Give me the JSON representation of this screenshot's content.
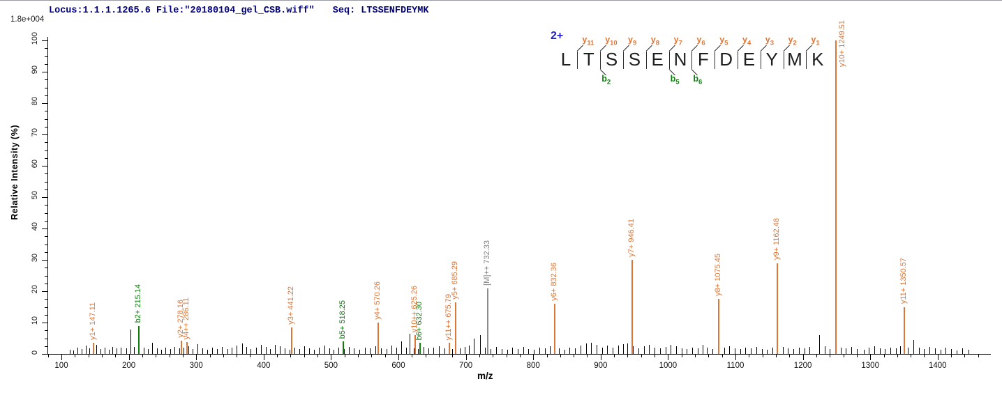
{
  "header": {
    "locus_file": "Locus:1.1.1.1265.6 File:\"20180104_gel_CSB.wiff\"",
    "seq_label": "Seq: LTSSENFDEYMK"
  },
  "chart_data": {
    "type": "bar",
    "subtype": "ms2_peptide_fragmentation_spectrum",
    "xlabel": "m/z",
    "ylabel": "Relative  Intensity (%)",
    "base_peak_intensity": "1.8e+004",
    "xlim": [
      79,
      1462
    ],
    "ylim": [
      0,
      100
    ],
    "x_major_ticks": [
      100,
      200,
      300,
      400,
      500,
      600,
      700,
      800,
      900,
      1000,
      1100,
      1200,
      1300,
      1400
    ],
    "x_minor_step": 20,
    "y_major_ticks": [
      0,
      10,
      20,
      30,
      40,
      50,
      60,
      70,
      80,
      90,
      100
    ],
    "y_minor_step": 2.5,
    "grid": false,
    "precursor": {
      "charge": "2+",
      "sequence": "LTSSENFDEYMK"
    },
    "colors": {
      "y_ion": "#de7637",
      "b_ion": "#0e7d0e",
      "precursor_peak": "#8c8c8c",
      "noise": "#000000"
    },
    "labeled_peaks": [
      {
        "label": "y1+ 147.11",
        "mz": 147.11,
        "intensity": 3.5,
        "series": "y_ion"
      },
      {
        "label": "b2+ 215.14",
        "mz": 215.14,
        "intensity": 9,
        "series": "b_ion"
      },
      {
        "label": "y2+ 278.16",
        "mz": 278.16,
        "intensity": 4.2,
        "series": "y_ion"
      },
      {
        "label": "y4++ 286.11",
        "mz": 286.11,
        "intensity": 3.8,
        "series": "y_ion"
      },
      {
        "label": "y3+ 441.22",
        "mz": 441.22,
        "intensity": 8.5,
        "series": "y_ion"
      },
      {
        "label": "b5+ 518.25",
        "mz": 518.25,
        "intensity": 4,
        "series": "b_ion"
      },
      {
        "label": "y4+ 570.26",
        "mz": 570.26,
        "intensity": 10,
        "series": "y_ion"
      },
      {
        "label": "y10++ 625.26",
        "mz": 625.26,
        "intensity": 6,
        "series": "y_ion"
      },
      {
        "label": "b6+ 632.30",
        "mz": 632.3,
        "intensity": 3.5,
        "series": "b_ion"
      },
      {
        "label": "y11++ 675.79",
        "mz": 675.79,
        "intensity": 3.5,
        "series": "y_ion"
      },
      {
        "label": "y5+ 685.29",
        "mz": 685.29,
        "intensity": 16.5,
        "series": "y_ion"
      },
      {
        "label": "[M]++ 732.33",
        "mz": 732.33,
        "intensity": 21,
        "series": "precursor"
      },
      {
        "label": "y6+ 832.36",
        "mz": 832.36,
        "intensity": 16,
        "series": "y_ion"
      },
      {
        "label": "y7+ 946.41",
        "mz": 946.41,
        "intensity": 30,
        "series": "y_ion"
      },
      {
        "label": "y8+ 1075.45",
        "mz": 1075.45,
        "intensity": 17.5,
        "series": "y_ion"
      },
      {
        "label": "y9+ 1162.48",
        "mz": 1162.48,
        "intensity": 29,
        "series": "y_ion"
      },
      {
        "label": "y10+ 1249.51",
        "mz": 1249.51,
        "intensity": 100,
        "series": "y_ion"
      },
      {
        "label": "y11+ 1350.57",
        "mz": 1350.57,
        "intensity": 15,
        "series": "y_ion"
      }
    ],
    "noise_peaks": [
      [
        112,
        1.4
      ],
      [
        118,
        1.1
      ],
      [
        124,
        2.0
      ],
      [
        130,
        1.5
      ],
      [
        136,
        2.6
      ],
      [
        141,
        1.8
      ],
      [
        152,
        3.0
      ],
      [
        158,
        1.6
      ],
      [
        164,
        2.1
      ],
      [
        170,
        1.4
      ],
      [
        176,
        2.3
      ],
      [
        182,
        1.7
      ],
      [
        188,
        2.0
      ],
      [
        196,
        1.8
      ],
      [
        203,
        7.8
      ],
      [
        208,
        2.2
      ],
      [
        214,
        1.3
      ],
      [
        222,
        2.0
      ],
      [
        228,
        1.5
      ],
      [
        235,
        3.6
      ],
      [
        242,
        1.8
      ],
      [
        248,
        1.4
      ],
      [
        254,
        2.1
      ],
      [
        261,
        1.6
      ],
      [
        268,
        2.3
      ],
      [
        275,
        1.7
      ],
      [
        281,
        1.9
      ],
      [
        288,
        2.5
      ],
      [
        295,
        1.6
      ],
      [
        302,
        3.1
      ],
      [
        309,
        1.8
      ],
      [
        316,
        1.4
      ],
      [
        324,
        2.0
      ],
      [
        331,
        1.6
      ],
      [
        338,
        2.3
      ],
      [
        346,
        1.5
      ],
      [
        353,
        2.0
      ],
      [
        360,
        2.7
      ],
      [
        368,
        3.3
      ],
      [
        374,
        2.2
      ],
      [
        381,
        1.6
      ],
      [
        389,
        2.0
      ],
      [
        396,
        2.9
      ],
      [
        403,
        2.2
      ],
      [
        410,
        1.6
      ],
      [
        417,
        3.0
      ],
      [
        424,
        2.4
      ],
      [
        431,
        1.8
      ],
      [
        438,
        1.4
      ],
      [
        446,
        2.0
      ],
      [
        453,
        1.6
      ],
      [
        460,
        2.5
      ],
      [
        468,
        1.8
      ],
      [
        475,
        1.4
      ],
      [
        482,
        2.0
      ],
      [
        490,
        2.7
      ],
      [
        497,
        1.8
      ],
      [
        504,
        1.4
      ],
      [
        511,
        2.0
      ],
      [
        519,
        1.6
      ],
      [
        526,
        2.2
      ],
      [
        534,
        1.8
      ],
      [
        542,
        1.4
      ],
      [
        550,
        2.0
      ],
      [
        558,
        1.7
      ],
      [
        566,
        2.4
      ],
      [
        574,
        1.8
      ],
      [
        582,
        1.5
      ],
      [
        590,
        2.6
      ],
      [
        597,
        1.9
      ],
      [
        604,
        4.0
      ],
      [
        611,
        2.0
      ],
      [
        617,
        6.4
      ],
      [
        623,
        1.8
      ],
      [
        629,
        1.5
      ],
      [
        637,
        2.2
      ],
      [
        645,
        1.7
      ],
      [
        652,
        2.0
      ],
      [
        660,
        2.4
      ],
      [
        668,
        1.8
      ],
      [
        680,
        1.5
      ],
      [
        691,
        1.7
      ],
      [
        698,
        2.3
      ],
      [
        705,
        2.7
      ],
      [
        712,
        5.0
      ],
      [
        721,
        6.0
      ],
      [
        728,
        2.0
      ],
      [
        737,
        1.6
      ],
      [
        745,
        2.2
      ],
      [
        753,
        1.6
      ],
      [
        761,
        1.4
      ],
      [
        769,
        2.0
      ],
      [
        777,
        1.6
      ],
      [
        785,
        2.2
      ],
      [
        793,
        1.6
      ],
      [
        801,
        1.4
      ],
      [
        809,
        2.0
      ],
      [
        817,
        1.7
      ],
      [
        825,
        2.4
      ],
      [
        838,
        1.8
      ],
      [
        846,
        1.4
      ],
      [
        854,
        2.0
      ],
      [
        862,
        1.7
      ],
      [
        870,
        2.6
      ],
      [
        878,
        3.4
      ],
      [
        886,
        3.6
      ],
      [
        894,
        2.8
      ],
      [
        902,
        2.0
      ],
      [
        910,
        2.6
      ],
      [
        918,
        2.1
      ],
      [
        926,
        2.7
      ],
      [
        933,
        3.1
      ],
      [
        940,
        3.4
      ],
      [
        948,
        2.4
      ],
      [
        956,
        1.8
      ],
      [
        964,
        2.4
      ],
      [
        972,
        2.8
      ],
      [
        980,
        2.0
      ],
      [
        988,
        1.7
      ],
      [
        996,
        2.3
      ],
      [
        1004,
        3.0
      ],
      [
        1012,
        2.4
      ],
      [
        1020,
        1.8
      ],
      [
        1028,
        1.6
      ],
      [
        1036,
        2.0
      ],
      [
        1044,
        1.7
      ],
      [
        1051,
        3.0
      ],
      [
        1058,
        2.1
      ],
      [
        1066,
        1.6
      ],
      [
        1083,
        2.0
      ],
      [
        1091,
        2.4
      ],
      [
        1099,
        1.8
      ],
      [
        1107,
        1.5
      ],
      [
        1115,
        2.0
      ],
      [
        1123,
        1.7
      ],
      [
        1131,
        2.2
      ],
      [
        1139,
        1.6
      ],
      [
        1147,
        1.4
      ],
      [
        1155,
        2.0
      ],
      [
        1170,
        2.3
      ],
      [
        1178,
        1.7
      ],
      [
        1186,
        1.5
      ],
      [
        1194,
        2.0
      ],
      [
        1202,
        1.7
      ],
      [
        1210,
        2.2
      ],
      [
        1224,
        6.0
      ],
      [
        1232,
        2.4
      ],
      [
        1240,
        1.6
      ],
      [
        1256,
        2.0
      ],
      [
        1264,
        1.7
      ],
      [
        1272,
        2.2
      ],
      [
        1280,
        1.6
      ],
      [
        1290,
        1.4
      ],
      [
        1298,
        2.0
      ],
      [
        1306,
        2.4
      ],
      [
        1314,
        1.8
      ],
      [
        1322,
        1.5
      ],
      [
        1330,
        2.0
      ],
      [
        1338,
        1.7
      ],
      [
        1344,
        2.4
      ],
      [
        1349,
        4.0
      ],
      [
        1356,
        2.1
      ],
      [
        1364,
        4.4
      ],
      [
        1372,
        2.0
      ],
      [
        1380,
        1.6
      ],
      [
        1388,
        2.2
      ],
      [
        1396,
        1.7
      ],
      [
        1404,
        1.4
      ],
      [
        1412,
        2.0
      ],
      [
        1420,
        1.6
      ],
      [
        1428,
        1.2
      ],
      [
        1436,
        1.8
      ],
      [
        1446,
        1.3
      ]
    ]
  },
  "annotation": {
    "charge": "2+",
    "residues": [
      "L",
      "T",
      "S",
      "S",
      "E",
      "N",
      "F",
      "D",
      "E",
      "Y",
      "M",
      "K"
    ],
    "y_ions": [
      {
        "prefix": "y",
        "index": "11",
        "boundary": 1
      },
      {
        "prefix": "y",
        "index": "10",
        "boundary": 2
      },
      {
        "prefix": "y",
        "index": "9",
        "boundary": 3
      },
      {
        "prefix": "y",
        "index": "8",
        "boundary": 4
      },
      {
        "prefix": "y",
        "index": "7",
        "boundary": 5
      },
      {
        "prefix": "y",
        "index": "6",
        "boundary": 6
      },
      {
        "prefix": "y",
        "index": "5",
        "boundary": 7
      },
      {
        "prefix": "y",
        "index": "4",
        "boundary": 8
      },
      {
        "prefix": "y",
        "index": "3",
        "boundary": 9
      },
      {
        "prefix": "y",
        "index": "2",
        "boundary": 10
      },
      {
        "prefix": "y",
        "index": "1",
        "boundary": 11
      }
    ],
    "b_ions": [
      {
        "prefix": "b",
        "index": "2",
        "boundary": 2
      },
      {
        "prefix": "b",
        "index": "5",
        "boundary": 5
      },
      {
        "prefix": "b",
        "index": "6",
        "boundary": 6
      }
    ]
  }
}
